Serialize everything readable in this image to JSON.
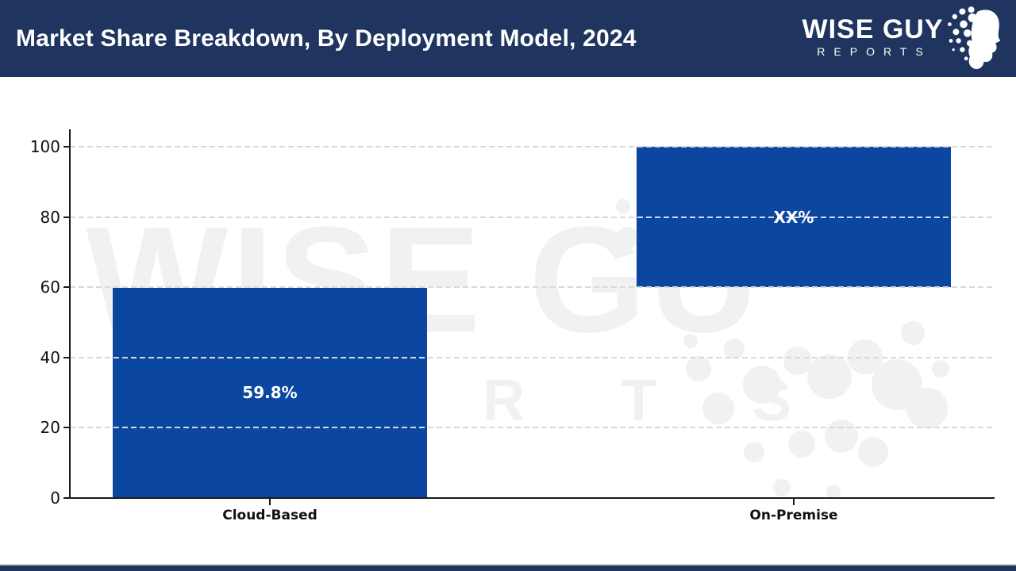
{
  "header": {
    "title": "Market Share Breakdown, By Deployment Model, 2024",
    "logo": {
      "name": "WISE GUY",
      "sub": "REPORTS"
    }
  },
  "watermark": {
    "line1": "WISE GU",
    "line2": "R T S"
  },
  "colors": {
    "header_bg": "#1f345f",
    "bar": "#0b47a0",
    "grid": "#d9d9d9",
    "axis": "#1a1a1a",
    "watermark": "#f1f1f3"
  },
  "chart_data": {
    "type": "bar",
    "title": "Market Share Breakdown, By Deployment Model, 2024",
    "categories": [
      "Cloud-Based",
      "On-Premise"
    ],
    "bars": [
      {
        "category": "Cloud-Based",
        "start": 0,
        "end": 59.8,
        "label": "59.8%"
      },
      {
        "category": "On-Premise",
        "start": 60,
        "end": 100,
        "label": "XX%"
      }
    ],
    "ylim": [
      0,
      100
    ],
    "yticks": [
      0,
      20,
      40,
      60,
      80,
      100
    ],
    "grid": "horizontal-dashed",
    "bar_color": "#0b47a0",
    "value_label_color": "#ffffff"
  }
}
